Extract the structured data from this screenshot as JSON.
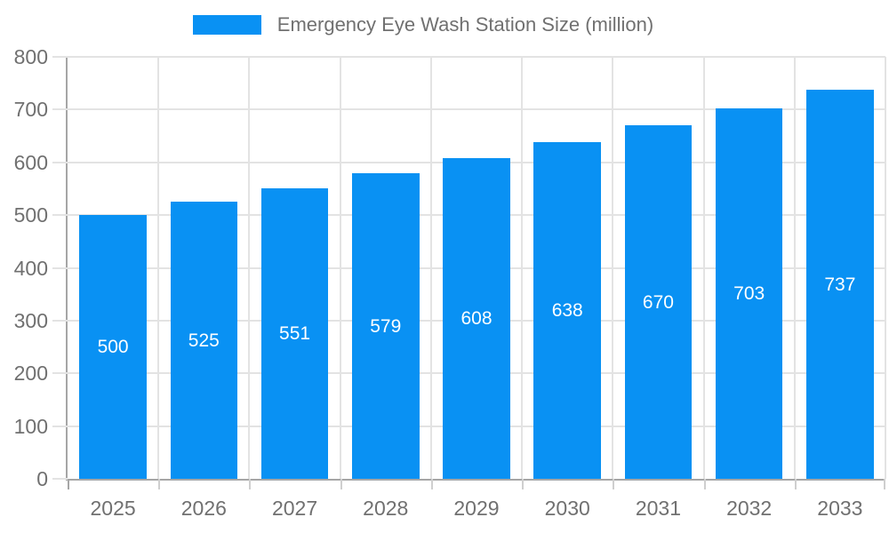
{
  "chart_data": {
    "type": "bar",
    "title": "Emergency Eye Wash Station Size (million)",
    "categories": [
      "2025",
      "2026",
      "2027",
      "2028",
      "2029",
      "2030",
      "2031",
      "2032",
      "2033"
    ],
    "values": [
      500,
      525,
      551,
      579,
      608,
      638,
      670,
      703,
      737
    ],
    "xlabel": "",
    "ylabel": "",
    "ylim": [
      0,
      800
    ],
    "yticks": [
      0,
      100,
      200,
      300,
      400,
      500,
      600,
      700,
      800
    ],
    "grid": true,
    "legend_position": "top-center",
    "value_labels": "inside-center",
    "colors": {
      "bar": "#0991f3",
      "grid": "#e3e3e3",
      "axis": "#a6a6a6",
      "tick": "#cfcfcf",
      "tick_label": "#707070",
      "title": "#707070",
      "value_label": "#ffffff",
      "background": "#ffffff"
    }
  }
}
